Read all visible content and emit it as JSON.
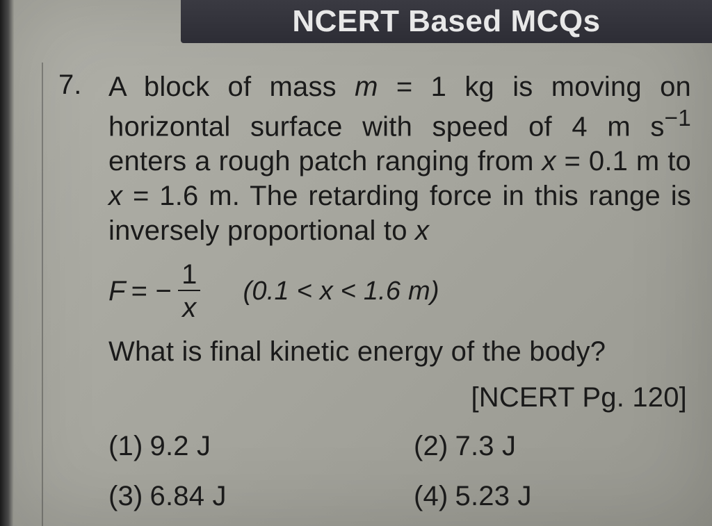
{
  "header": {
    "title": "NCERT Based MCQs"
  },
  "question": {
    "number": "7.",
    "text_parts": {
      "p1": "A block of mass ",
      "m_eq": "m",
      "p2": " = 1 kg is moving on horizontal surface with speed of 4 m s",
      "exp": "−1",
      "p3": " enters a rough patch ranging from ",
      "x1": "x",
      "p4": " = 0.1 m to ",
      "x2": "x",
      "p5": " = 1.6 m. The retarding force in this range is inversely proportional to ",
      "x3": "x"
    },
    "formula": {
      "lhs": "F",
      "eq": "= −",
      "num": "1",
      "den": "x",
      "domain": "(0.1 < x < 1.6 m)"
    },
    "subquestion": "What is final kinetic energy of the body?",
    "reference": "[NCERT Pg. 120]",
    "options": {
      "o1_label": "(1)",
      "o1_value": "9.2 J",
      "o2_label": "(2)",
      "o2_value": "7.3 J",
      "o3_label": "(3)",
      "o3_value": "6.84 J",
      "o4_label": "(4)",
      "o4_value": "5.23 J"
    }
  },
  "colors": {
    "page_bg": "#9a9a92",
    "header_bg": "#2d2d35",
    "header_text": "#e8e8e8",
    "body_text": "#1a1a1a"
  }
}
